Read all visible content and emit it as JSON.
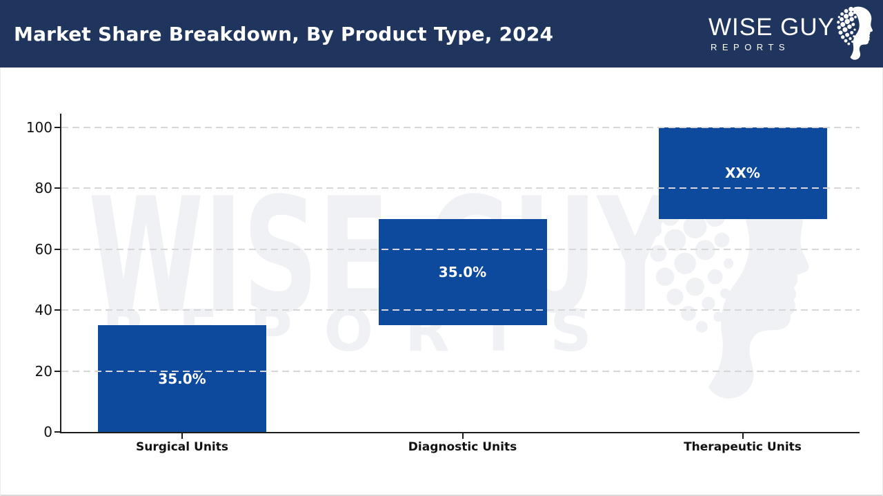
{
  "header": {
    "title": "Market Share Breakdown, By Product Type, 2024",
    "logo": {
      "brand_top": "WISE GUY",
      "brand_bottom": "REPORTS",
      "head_icon": "dotted-head-profile"
    }
  },
  "watermark": {
    "text_top": "WISE GUY",
    "text_bottom": "REPORTS",
    "head_icon": "dotted-head-profile"
  },
  "colors": {
    "header_bg": "#20355d",
    "bar_fill": "#0d4a9e",
    "bar_label_text": "#ffffff",
    "watermark": "#f0f1f4",
    "gridline": "#d7d7d7",
    "axis": "#1c1c1c",
    "tick_text": "#111111"
  },
  "chart_data": {
    "type": "bar",
    "subtype": "waterfall",
    "title": "Market Share Breakdown, By Product Type, 2024",
    "categories": [
      "Surgical Units",
      "Diagnostic Units",
      "Therapeutic Units"
    ],
    "bars": [
      {
        "category": "Surgical Units",
        "start": 0,
        "end": 35,
        "label": "35.0%"
      },
      {
        "category": "Diagnostic Units",
        "start": 35,
        "end": 70,
        "label": "35.0%"
      },
      {
        "category": "Therapeutic Units",
        "start": 70,
        "end": 100,
        "label": "XX%"
      }
    ],
    "yticks": [
      0,
      20,
      40,
      60,
      80,
      100
    ],
    "ylim": [
      0,
      105
    ],
    "xlabel": "",
    "ylabel": "",
    "legend": "none",
    "grid": "horizontal-dashed"
  }
}
